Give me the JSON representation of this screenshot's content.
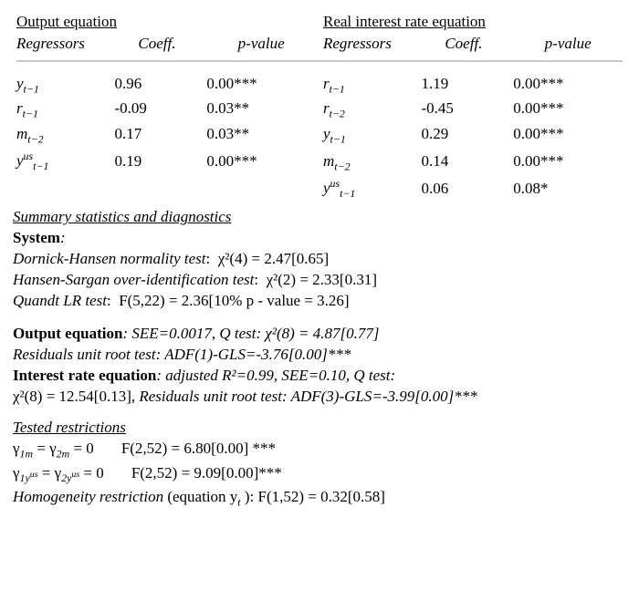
{
  "headers": {
    "left_group": "Output equation",
    "right_group": "Real interest rate equation",
    "regressors": "Regressors",
    "coeff": "Coeff.",
    "pvalue": "p-value"
  },
  "left_rows": [
    {
      "var": "y",
      "sub": "t−1",
      "sup": "",
      "coeff": "0.96",
      "p": "0.00***"
    },
    {
      "var": "r",
      "sub": "t−1",
      "sup": "",
      "coeff": "-0.09",
      "p": "0.03**"
    },
    {
      "var": "m",
      "sub": "t−2",
      "sup": "",
      "coeff": "0.17",
      "p": "0.03**"
    },
    {
      "var": "y",
      "sub": "t−1",
      "sup": "us",
      "coeff": "0.19",
      "p": "0.00***"
    }
  ],
  "right_rows": [
    {
      "var": "r",
      "sub": "t−1",
      "sup": "",
      "coeff": "1.19",
      "p": "0.00***"
    },
    {
      "var": "r",
      "sub": "t−2",
      "sup": "",
      "coeff": "-0.45",
      "p": "0.00***"
    },
    {
      "var": "y",
      "sub": "t−1",
      "sup": "",
      "coeff": "0.29",
      "p": "0.00***"
    },
    {
      "var": "m",
      "sub": "t−2",
      "sup": "",
      "coeff": "0.14",
      "p": "0.00***"
    },
    {
      "var": "y",
      "sub": "t−1",
      "sup": "us",
      "coeff": "0.06",
      "p": "0.08*"
    }
  ],
  "diag": {
    "title": "Summary statistics and diagnostics",
    "system": "System",
    "dh_label": "Dornick-Hansen normality test",
    "dh_val": "χ²(4) = 2.47[0.65]",
    "hs_label": "Hansen-Sargan over-identification test",
    "hs_val": "χ²(2) = 2.33[0.31]",
    "qlr_label": "Quandt LR test",
    "qlr_val": "F(5,22) = 2.36[10% p - value = 3.26]",
    "out_eq_head": "Output equation",
    "out_eq_stats": ": SEE=0.0017, Q test:  χ²(8) = 4.87[0.77]",
    "out_res": "Residuals unit root test: ADF(1)-GLS=-3.76[0.00]***",
    "ir_head": "Interest   rate   equation",
    "ir_stats": ":   adjusted   R²=0.99,   SEE=0.10,   Q   test:",
    "ir_chi": "χ²(8) = 12.54[0.13]",
    "ir_res": ", Residuals unit root test: ADF(3)-GLS=-3.99[0.00]***"
  },
  "restr": {
    "title": "Tested restrictions",
    "r1_lhs": "γ<span class=\"sub\">1m</span> = γ<span class=\"sub\">2m</span> = 0",
    "r1_rhs": "F(2,52) = 6.80[0.00] ***",
    "r2_lhs": "γ<span class=\"sub\">1y<sup>us</sup></span> = γ<span class=\"sub\">2y<sup>us</sup></span> = 0",
    "r2_rhs": "F(2,52) = 9.09[0.00]***",
    "hom_label": "Homogeneity restriction",
    "hom_eq": " (equation  y<span class=\"sub\">t</span> ): ",
    "hom_val": "F(1,52) = 0.32[0.58]"
  }
}
